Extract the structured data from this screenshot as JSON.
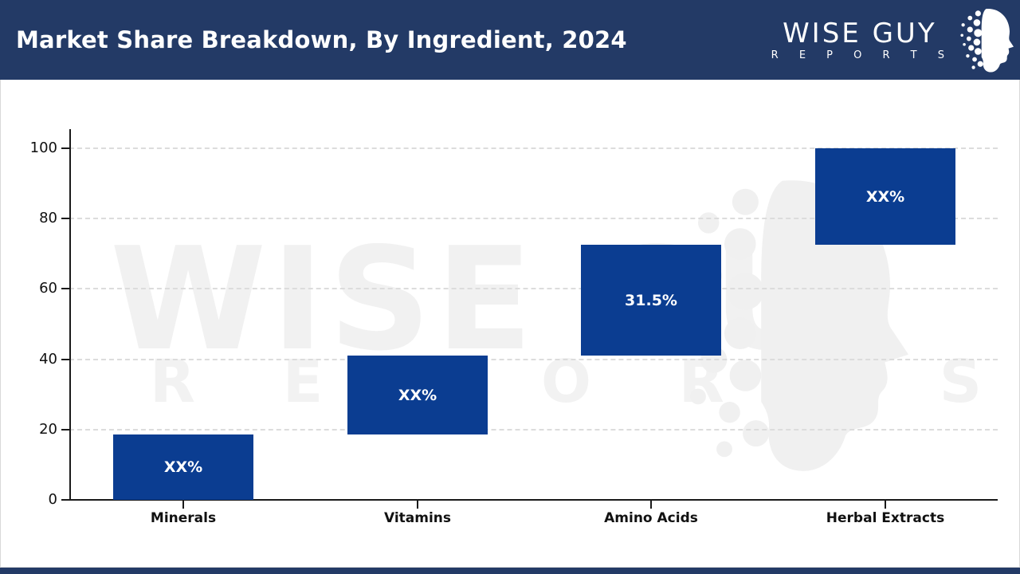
{
  "header": {
    "title": "Market Share Breakdown, By Ingredient, 2024",
    "logo": {
      "line1": "WISE GUY",
      "line2": "R E P O R T S"
    }
  },
  "watermark": {
    "line1": "WISE GU",
    "line2": "R E P O R T S"
  },
  "footer": {},
  "colors": {
    "header_bg": "#233a66",
    "footer_bg": "#233a66",
    "bar": "#0b3d91",
    "grid": "#dcdcdc",
    "axis": "#1a1a1a",
    "value_label": "#ffffff",
    "watermark": "#f1f1f1"
  },
  "chart_data": {
    "type": "bar",
    "subtype": "waterfall",
    "title": "Market Share Breakdown, By Ingredient, 2024",
    "xlabel": "",
    "ylabel": "",
    "categories": [
      "Minerals",
      "Vitamins",
      "Amino Acids",
      "Herbal Extracts"
    ],
    "bars": [
      {
        "category": "Minerals",
        "start": 0,
        "end": 18.5,
        "value": 18.5,
        "label": "XX%"
      },
      {
        "category": "Vitamins",
        "start": 18.5,
        "end": 41,
        "value": 22.5,
        "label": "XX%"
      },
      {
        "category": "Amino Acids",
        "start": 41,
        "end": 72.5,
        "value": 31.5,
        "label": "31.5%"
      },
      {
        "category": "Herbal Extracts",
        "start": 72.5,
        "end": 100,
        "value": 27.5,
        "label": "XX%"
      }
    ],
    "yticks": [
      0,
      20,
      40,
      60,
      80,
      100
    ],
    "ylim": [
      0,
      105
    ],
    "grid": "horizontal-dashed",
    "legend": "none",
    "bar_color": "#0b3d91"
  }
}
